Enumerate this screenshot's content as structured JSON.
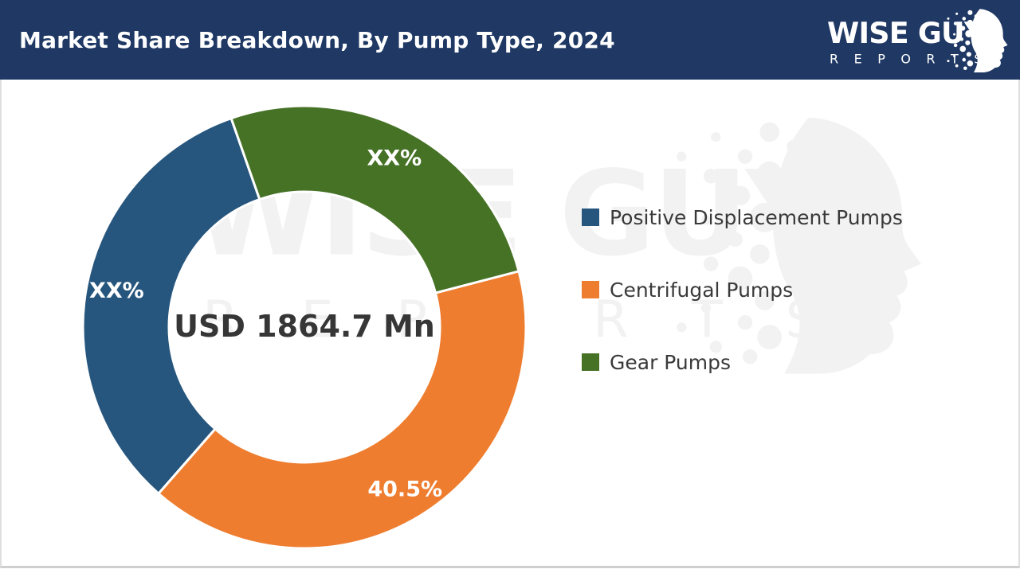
{
  "header": {
    "title": "Market Share Breakdown, By Pump Type, 2024",
    "background_color": "#1f3864",
    "logo": {
      "line1": "WISE GUY",
      "line2": "R E P O R T S"
    }
  },
  "chart_data": {
    "type": "pie",
    "subtype": "donut",
    "title": "Market Share Breakdown, By Pump Type, 2024",
    "center_label": "USD 1864.7 Mn",
    "start_angle_deg": 109.3,
    "direction": "counterclockwise",
    "donut_hole_ratio": 0.61,
    "legend_position": "right",
    "slices": [
      {
        "label": "Positive Displacement Pumps",
        "value_pct": 33.2,
        "display_label": "XX%",
        "color": "#26567d"
      },
      {
        "label": "Centrifugal Pumps",
        "value_pct": 40.5,
        "display_label": "40.5%",
        "color": "#ee7d2f"
      },
      {
        "label": "Gear Pumps",
        "value_pct": 26.3,
        "display_label": "XX%",
        "color": "#467226"
      }
    ]
  },
  "watermark": {
    "line1": "WISE GUY",
    "line2": "R E P O R T S"
  }
}
